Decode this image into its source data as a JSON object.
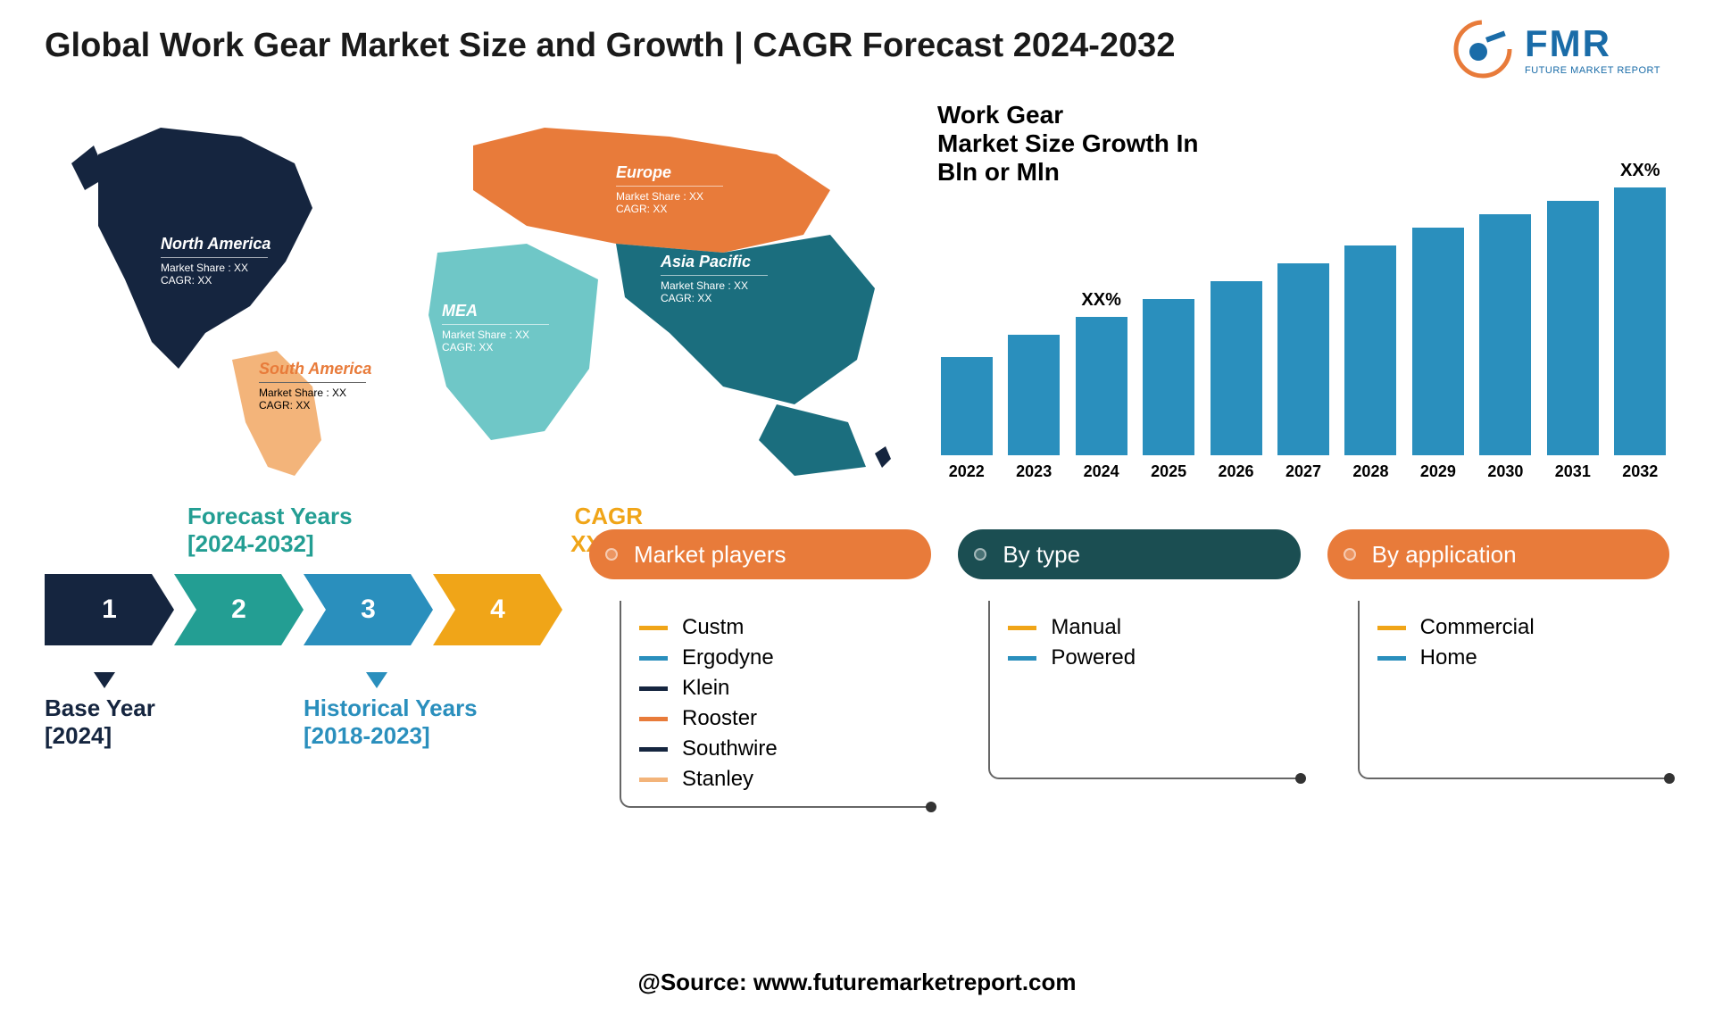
{
  "title": "Global Work Gear Market Size and Growth | CAGR Forecast 2024-2032",
  "logo": {
    "fmr": "FMR",
    "sub": "FUTURE MARKET REPORT"
  },
  "source": "@Source: www.futuremarketreport.com",
  "map": {
    "regions": [
      {
        "name": "North America",
        "share": "Market Share : XX",
        "cagr": "CAGR: XX",
        "color": "#15253f"
      },
      {
        "name": "South America",
        "share": "Market Share : XX",
        "cagr": "CAGR: XX",
        "color": "#f3b47a"
      },
      {
        "name": "Europe",
        "share": "Market Share : XX",
        "cagr": "CAGR: XX",
        "color": "#e87b3a"
      },
      {
        "name": "MEA",
        "share": "Market Share : XX",
        "cagr": "CAGR: XX",
        "color": "#6fc7c7"
      },
      {
        "name": "Asia Pacific",
        "share": "Market Share : XX",
        "cagr": "CAGR: XX",
        "color": "#1b6e7e"
      }
    ]
  },
  "chart": {
    "title_l1": "Work Gear",
    "title_l2": "Market Size Growth In",
    "title_l3": "Bln or Mln",
    "bar_color": "#2a8fbd",
    "years": [
      "2022",
      "2023",
      "2024",
      "2025",
      "2026",
      "2027",
      "2028",
      "2029",
      "2030",
      "2031",
      "2032"
    ],
    "heights": [
      110,
      135,
      155,
      175,
      195,
      215,
      235,
      255,
      270,
      285,
      300
    ],
    "annotations": {
      "2": "XX%",
      "10": "XX%"
    }
  },
  "timeline": {
    "labels": {
      "forecast": {
        "text": "Forecast Years",
        "range": "[2024-2032]",
        "color": "#239e93"
      },
      "cagr": {
        "text": "CAGR",
        "range": "XX%%",
        "color": "#f0a518"
      },
      "base": {
        "text": "Base Year",
        "range": "[2024]",
        "color": "#15253f"
      },
      "hist": {
        "text": "Historical Years",
        "range": "[2018-2023]",
        "color": "#2a8fbd"
      }
    },
    "chevrons": [
      {
        "num": "1",
        "color": "#15253f"
      },
      {
        "num": "2",
        "color": "#239e93"
      },
      {
        "num": "3",
        "color": "#2a8fbd"
      },
      {
        "num": "4",
        "color": "#f0a518"
      }
    ]
  },
  "pills": {
    "market_players": {
      "label": "Market players",
      "bg": "#e87b3a",
      "items": [
        {
          "name": "Custm",
          "color": "#f0a518"
        },
        {
          "name": "Ergodyne",
          "color": "#2a8fbd"
        },
        {
          "name": "Klein",
          "color": "#15253f"
        },
        {
          "name": "Rooster",
          "color": "#e87b3a"
        },
        {
          "name": "Southwire",
          "color": "#15253f"
        },
        {
          "name": "Stanley",
          "color": "#f3b47a"
        }
      ]
    },
    "by_type": {
      "label": "By type",
      "bg": "#1b4e52",
      "items": [
        {
          "name": "Manual",
          "color": "#f0a518"
        },
        {
          "name": "Powered",
          "color": "#2a8fbd"
        }
      ]
    },
    "by_application": {
      "label": "By application",
      "bg": "#e87b3a",
      "items": [
        {
          "name": "Commercial",
          "color": "#f0a518"
        },
        {
          "name": "Home",
          "color": "#2a8fbd"
        }
      ]
    }
  }
}
